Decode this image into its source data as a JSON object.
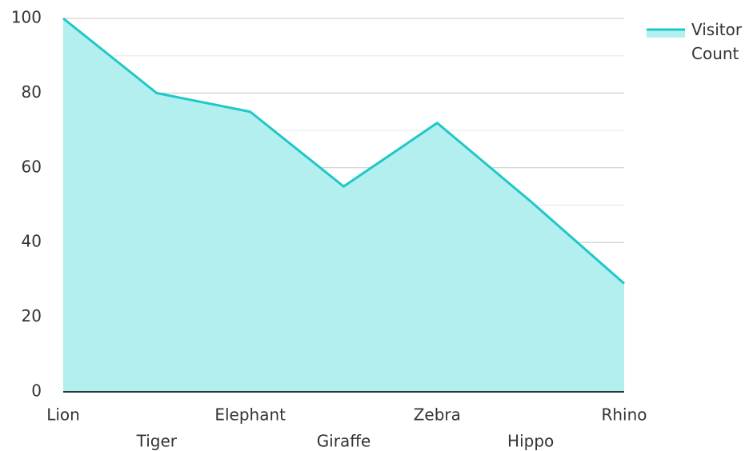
{
  "chart_data": {
    "type": "area",
    "categories": [
      "Lion",
      "Tiger",
      "Elephant",
      "Giraffe",
      "Zebra",
      "Hippo",
      "Rhino"
    ],
    "series": [
      {
        "name": "Visitor Count",
        "color": "#1fc8c8",
        "fill": "#b2efee",
        "values": [
          100,
          80,
          75,
          55,
          72,
          51,
          29
        ]
      }
    ],
    "ylim": [
      0,
      100
    ],
    "yticks": [
      0,
      20,
      40,
      60,
      80,
      100
    ],
    "grid": true,
    "legend": "top-right"
  }
}
